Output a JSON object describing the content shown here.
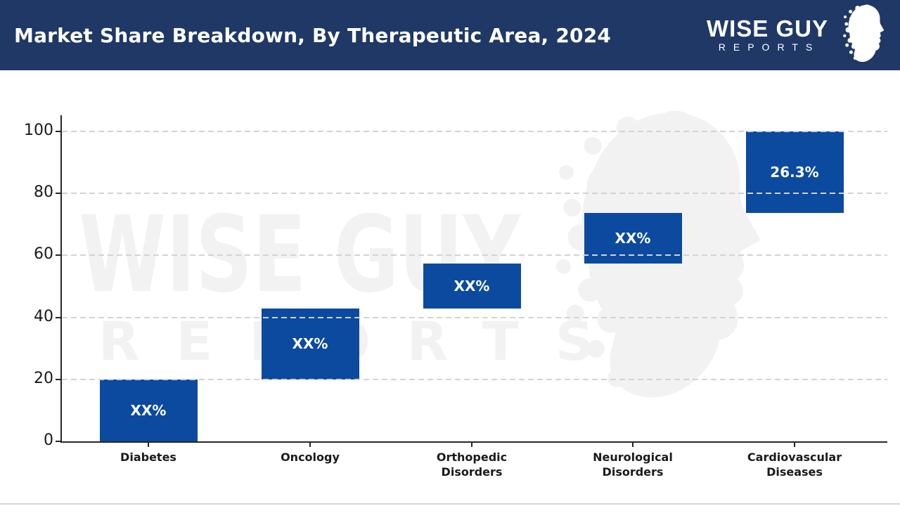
{
  "header": {
    "title": "Market Share Breakdown, By Therapeutic Area, 2024",
    "logo": {
      "brand": "WISE GUY",
      "sub": "REPORTS"
    }
  },
  "watermark": {
    "brand": "WISE GUY",
    "sub": "REPORTS"
  },
  "colors": {
    "header_bg": "#1f3866",
    "header_text": "#ffffff",
    "bar_fill": "#0b4a9f",
    "bar_label": "#ffffff",
    "gridline": "#d3d3d3",
    "axis": "#262626",
    "tick_label": "#1a1a1a",
    "watermark_gray": "#f2f2f2",
    "bottom_rule": "#d9d9d9"
  },
  "chart_data": {
    "type": "bar",
    "variant": "waterfall",
    "title": "Market Share Breakdown, By Therapeutic Area, 2024",
    "categories": [
      "Diabetes",
      "Oncology",
      "Orthopedic Disorders",
      "Neurological Disorders",
      "Cardiovascular Diseases"
    ],
    "bars": [
      {
        "category": "Diabetes",
        "start": 0,
        "end": 20,
        "label": "XX%"
      },
      {
        "category": "Oncology",
        "start": 20,
        "end": 42.9,
        "label": "XX%"
      },
      {
        "category": "Orthopedic Disorders",
        "start": 42.9,
        "end": 57.4,
        "label": "XX%"
      },
      {
        "category": "Neurological Disorders",
        "start": 57.4,
        "end": 73.7,
        "label": "XX%"
      },
      {
        "category": "Cardiovascular Diseases",
        "start": 73.7,
        "end": 100,
        "label": "26.3%"
      }
    ],
    "ylim": [
      0,
      100
    ],
    "yticks": [
      0,
      20,
      40,
      60,
      80,
      100
    ],
    "xlabel": "",
    "ylabel": "",
    "grid": {
      "horizontal": true,
      "style": "dashed",
      "drawn_over_bars": true
    },
    "legend": "none"
  }
}
